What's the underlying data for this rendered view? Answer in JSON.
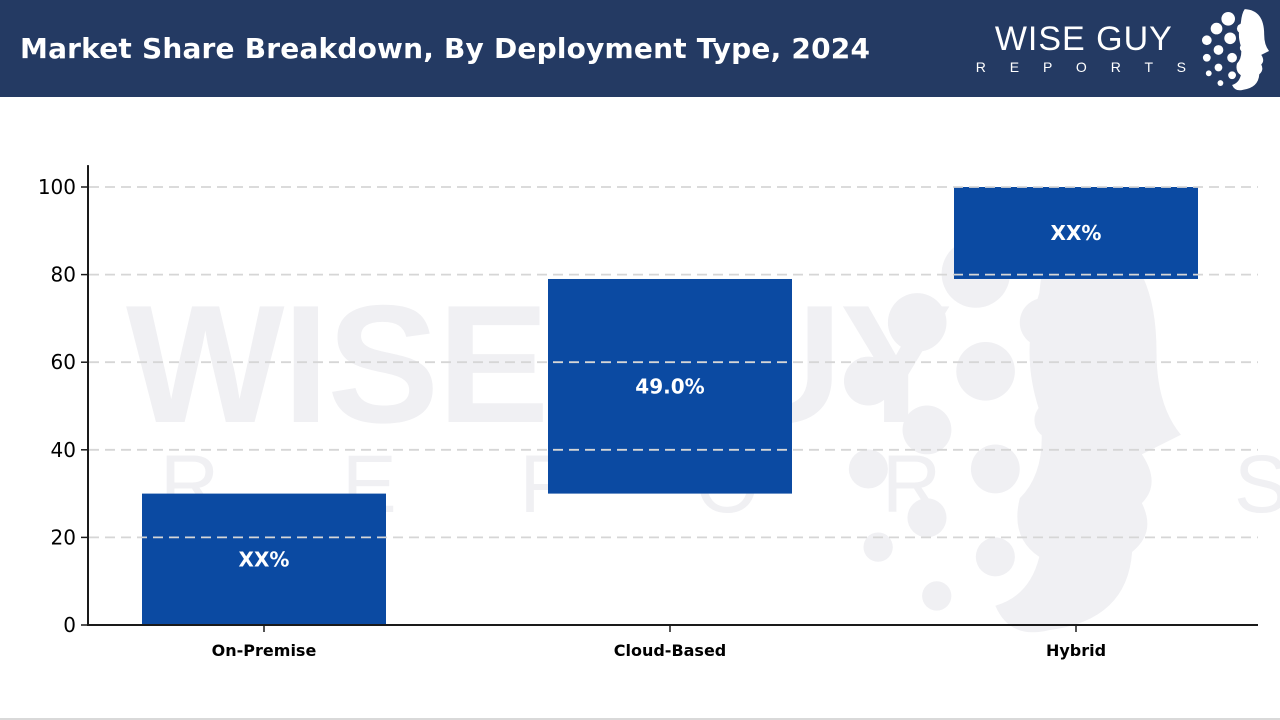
{
  "header": {
    "title": "Market Share Breakdown, By Deployment Type, 2024",
    "logo": {
      "wordmark": "WISE GUY",
      "subtext": "R E P O R T S"
    }
  },
  "watermark": {
    "wordmark": "WISE GUY",
    "subtext": "REPORTS"
  },
  "colors": {
    "header_bg": "#243a63",
    "bar": "#0b4aa2",
    "axis": "#1a1a1a",
    "grid": "#d6d6d6",
    "watermark": "#f0f0f3",
    "border": "#d9d9d9",
    "tick_text": "#000000",
    "bar_label_text": "#ffffff"
  },
  "chart_data": {
    "type": "bar",
    "variant": "waterfall",
    "title": "Market Share Breakdown, By Deployment Type, 2024",
    "categories": [
      "On-Premise",
      "Cloud-Based",
      "Hybrid"
    ],
    "segments": [
      {
        "category": "On-Premise",
        "start": 0,
        "end": 30,
        "height": 30,
        "label": "XX%"
      },
      {
        "category": "Cloud-Based",
        "start": 30,
        "end": 79,
        "height": 49,
        "label": "49.0%"
      },
      {
        "category": "Hybrid",
        "start": 79,
        "end": 100,
        "height": 21,
        "label": "XX%"
      }
    ],
    "yticks": [
      0,
      20,
      40,
      60,
      80,
      100
    ],
    "ylim": [
      0,
      105
    ],
    "xlabel": "",
    "ylabel": "",
    "grid": "horizontal-dashed",
    "legend": "none"
  }
}
